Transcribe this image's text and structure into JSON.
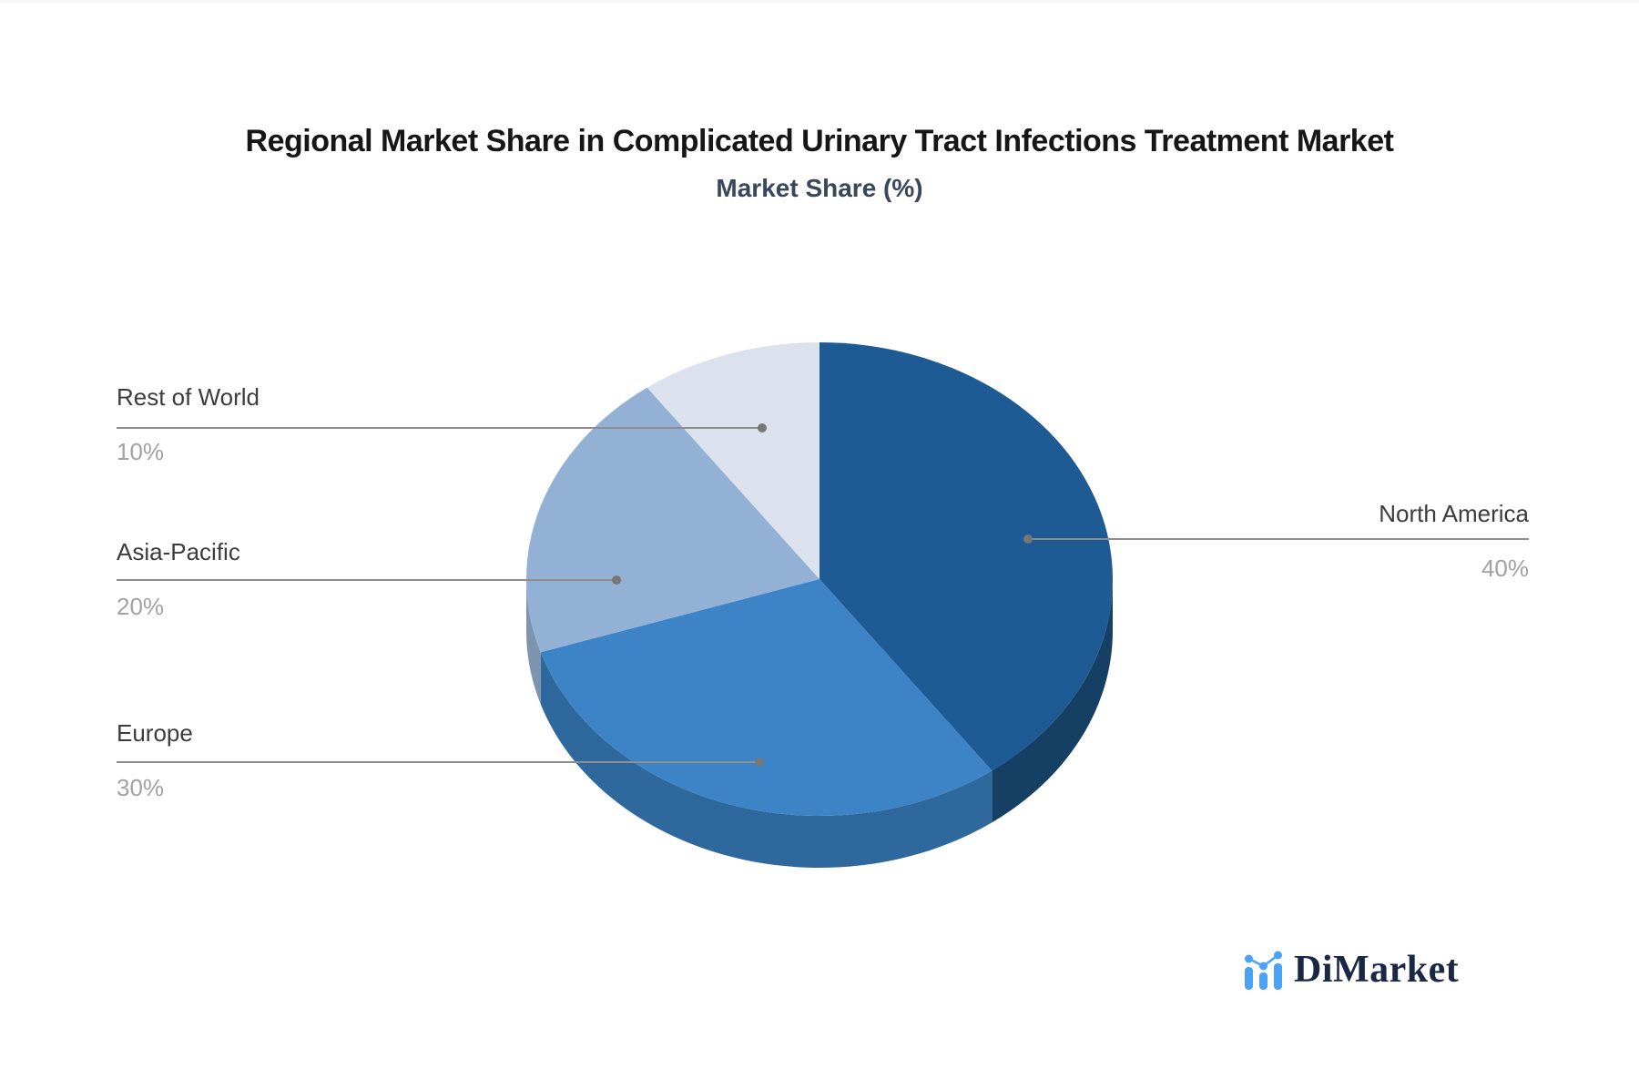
{
  "title": "Regional Market Share in Complicated Urinary Tract Infections Treatment Market",
  "subtitle": "Market Share (%)",
  "chart_data": {
    "type": "pie",
    "title": "Regional Market Share in Complicated Urinary Tract Infections Treatment Market",
    "subtitle": "Market Share (%)",
    "unit": "%",
    "style": "3d-pie",
    "start_angle_deg": 0,
    "clockwise": true,
    "legend_position": "none",
    "categories": [
      "North America",
      "Europe",
      "Asia-Pacific",
      "Rest of World"
    ],
    "values": [
      40,
      30,
      20,
      10
    ],
    "segments": [
      {
        "label": "North America",
        "value": 40,
        "display": "40%",
        "color": "#1e5b94",
        "depth_color": "#153f63",
        "label_side": "right"
      },
      {
        "label": "Europe",
        "value": 30,
        "display": "30%",
        "color": "#3c84c5",
        "depth_color": "#2e689c",
        "label_side": "left"
      },
      {
        "label": "Asia-Pacific",
        "value": 20,
        "display": "20%",
        "color": "#92b1d5",
        "depth_color": "#7e93ae",
        "label_side": "left"
      },
      {
        "label": "Rest of World",
        "value": 10,
        "display": "10%",
        "color": "#dbe2ee",
        "depth_color": "#b9c4d6",
        "label_side": "left"
      }
    ]
  },
  "colors": {
    "title": "#161616",
    "subtitle": "#37475c",
    "label_name": "#3c3c3c",
    "label_value": "#a2a2a2",
    "leader_line": "#8e8e8e",
    "leader_dot": "#777777",
    "logo_accent": "#4aa3f7",
    "logo_text": "#1b2844"
  },
  "logo": {
    "text": "DiMarket",
    "icon": "bar-chart-sparkline-icon"
  }
}
